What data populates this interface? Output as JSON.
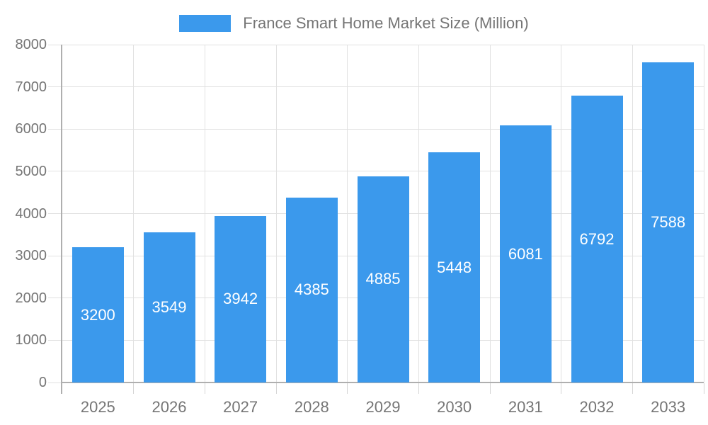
{
  "chart_data": {
    "type": "bar",
    "legend": {
      "label": "France Smart Home Market Size (Million)",
      "position": "top-center"
    },
    "categories": [
      "2025",
      "2026",
      "2027",
      "2028",
      "2029",
      "2030",
      "2031",
      "2032",
      "2033"
    ],
    "series": [
      {
        "name": "France Smart Home Market Size (Million)",
        "values": [
          3200,
          3549,
          3942,
          4385,
          4885,
          5448,
          6081,
          6792,
          7588
        ]
      }
    ],
    "yticks": [
      0,
      1000,
      2000,
      3000,
      4000,
      5000,
      6000,
      7000,
      8000
    ],
    "ylim": [
      0,
      8000
    ],
    "ytick_step": 1000,
    "xlabel": "",
    "ylabel": "",
    "grid": true,
    "bar_label_position": "inside-middle",
    "colors": {
      "bar": "#3B99EC",
      "bar_label_text": "#FFFFFF",
      "axis_text": "#757575",
      "axis_line": "#AFAFAF",
      "gridline": "#E1E1E1",
      "tick": "#D5D5D5",
      "background": "#FFFFFF"
    }
  }
}
